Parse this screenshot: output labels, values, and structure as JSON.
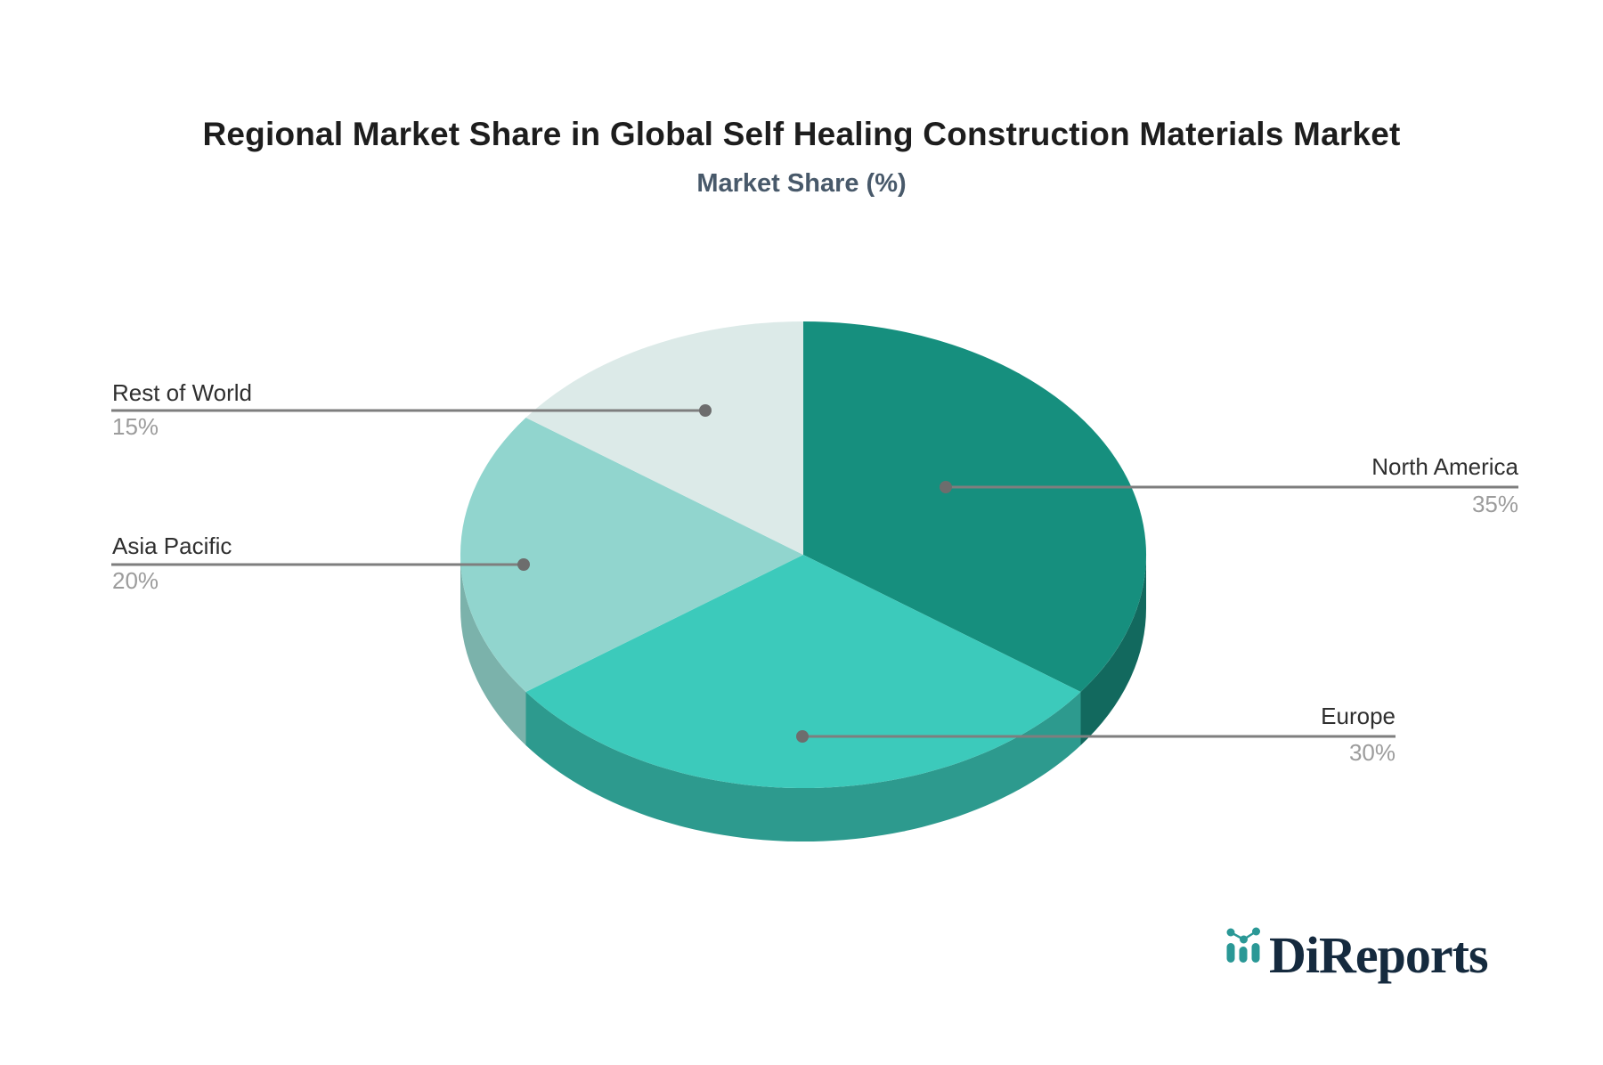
{
  "header": {
    "title": "Regional Market Share in Global Self Healing Construction Materials Market",
    "subtitle": "Market Share (%)"
  },
  "chart_data": {
    "type": "pie",
    "style": "3d",
    "title": "Regional Market Share in Global Self Healing Construction Materials Market",
    "subtitle": "Market Share (%)",
    "unit": "%",
    "start_angle": "top",
    "direction": "clockwise",
    "legend_position": "callout-labels",
    "categories": [
      "North America",
      "Europe",
      "Asia Pacific",
      "Rest of World"
    ],
    "values": [
      35,
      30,
      20,
      15
    ],
    "slices": [
      {
        "label": "North America",
        "value": 35,
        "pct_label": "35%",
        "color": "#168f7e",
        "side_color": "#12695e",
        "callout_side": "right"
      },
      {
        "label": "Europe",
        "value": 30,
        "pct_label": "30%",
        "color": "#3ccabb",
        "side_color": "#2d9a8e",
        "callout_side": "right"
      },
      {
        "label": "Asia Pacific",
        "value": 20,
        "pct_label": "20%",
        "color": "#91d5ce",
        "side_color": "#7bb2ab",
        "callout_side": "left"
      },
      {
        "label": "Rest of World",
        "value": 15,
        "pct_label": "15%",
        "color": "#dceae8",
        "side_color": "#bcd3cf",
        "callout_side": "left"
      }
    ]
  },
  "branding": {
    "logo_text": "DiReports",
    "logo_color": "#152a3e",
    "logo_icon": "bar-chart-trend-icon",
    "icon_color": "#2a9896"
  },
  "colors": {
    "background": "#ffffff",
    "title": "#1d1d1d",
    "subtitle": "#48596a",
    "callout_label": "#2f2f2f",
    "callout_pct": "#9c9c9c",
    "leader_line": "#7e7e7e",
    "leader_dot": "#6d6d6d"
  }
}
